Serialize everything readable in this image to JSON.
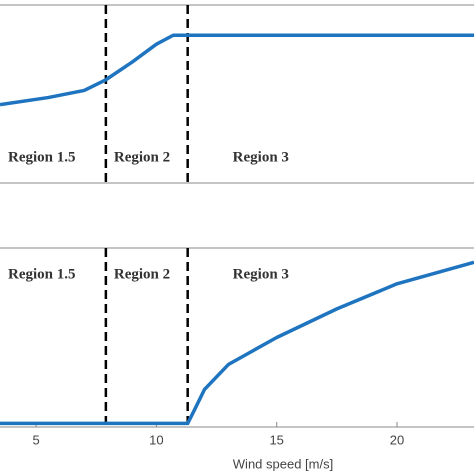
{
  "chart_data": [
    {
      "type": "line",
      "color": "#1f74c0",
      "x": [
        3.5,
        5.5,
        7,
        7.9,
        9,
        10,
        10.7,
        11.3,
        23.2
      ],
      "values": [
        0.44,
        0.48,
        0.52,
        0.58,
        0.68,
        0.78,
        0.83,
        0.83,
        0.83
      ],
      "xlim": [
        3.5,
        23.2
      ],
      "ylim": [
        0,
        1
      ],
      "boundaries": [
        7.9,
        11.3
      ],
      "annotations": [
        "Region 1.5",
        "Region 2",
        "Region 3"
      ]
    },
    {
      "type": "line",
      "color": "#1f74c0",
      "x": [
        3.5,
        11.3,
        11.6,
        12,
        13,
        15,
        17.5,
        20,
        23.2
      ],
      "values": [
        0.02,
        0.02,
        0.1,
        0.21,
        0.35,
        0.5,
        0.66,
        0.8,
        0.92
      ],
      "xlim": [
        3.5,
        23.2
      ],
      "ylim": [
        0,
        1
      ],
      "xticks": [
        5,
        10,
        15,
        20
      ],
      "xlabel": "Wind speed [m/s]",
      "boundaries": [
        7.9,
        11.3
      ],
      "annotations": [
        "Region 1.5",
        "Region 2",
        "Region 3"
      ]
    }
  ]
}
